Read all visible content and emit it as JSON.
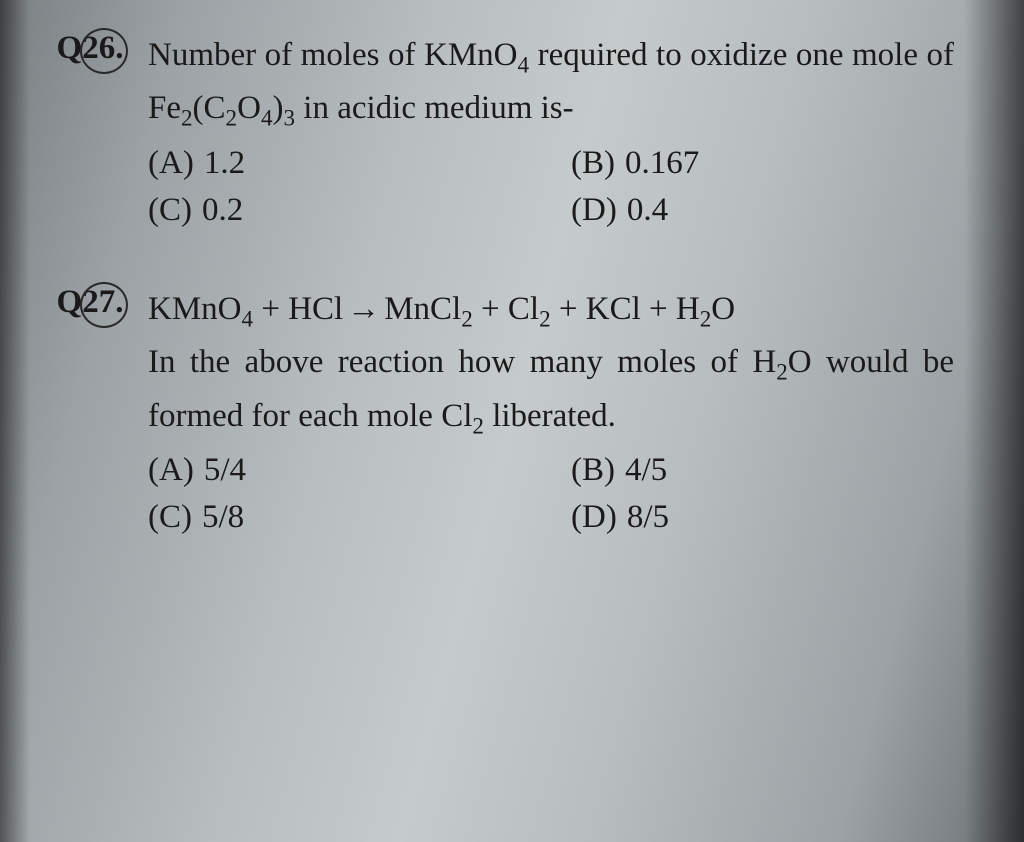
{
  "background_gradient": [
    "#7a7f82",
    "#9ca2a5",
    "#b8bdbf",
    "#c5cacb"
  ],
  "text_color": "#1a1a1a",
  "font_family": "Georgia, Times New Roman, serif",
  "question_fontsize": 33,
  "option_fontsize": 33,
  "questions": [
    {
      "number_prefix": "Q",
      "number": "26",
      "number_suffix": ".",
      "circled": true,
      "text_parts": {
        "p1": "Number of moles of ",
        "formula1": "KMnO",
        "sub1": "4",
        "p2": " required to oxidize one mole of ",
        "formula2_a": "Fe",
        "sub2_a": "2",
        "formula2_b": "(C",
        "sub2_b": "2",
        "formula2_c": "O",
        "sub2_c": "4",
        "formula2_d": ")",
        "sub2_d": "3",
        "p3": " in acidic medium is-"
      },
      "options": {
        "A": {
          "label": "(A)",
          "value": "1.2"
        },
        "B": {
          "label": "(B)",
          "value": "0.167"
        },
        "C": {
          "label": "(C)",
          "value": "0.2"
        },
        "D": {
          "label": "(D)",
          "value": "0.4"
        }
      }
    },
    {
      "number_prefix": "Q",
      "number": "27",
      "number_suffix": ".",
      "circled": true,
      "equation": {
        "r1": "KMnO",
        "r1s": "4",
        "plus1": " + ",
        "r2": "HCl",
        "arrow": " → ",
        "p1": "MnCl",
        "p1s": "2",
        "plus2": " + ",
        "p2": "Cl",
        "p2s": "2",
        "plus3": " + ",
        "p3": "KCl",
        "plus4": " + ",
        "p4": "H",
        "p4s": "2",
        "p4b": "O"
      },
      "text_parts": {
        "p1": "In the above reaction how many moles of ",
        "h2o_a": "H",
        "h2o_s": "2",
        "h2o_b": "O",
        "p2": " would be formed for each mole ",
        "cl2": "Cl",
        "cl2s": "2",
        "p3": " liberated."
      },
      "options": {
        "A": {
          "label": "(A)",
          "value": "5/4"
        },
        "B": {
          "label": "(B)",
          "value": "4/5"
        },
        "C": {
          "label": "(C)",
          "value": "5/8"
        },
        "D": {
          "label": "(D)",
          "value": "8/5"
        }
      }
    }
  ]
}
